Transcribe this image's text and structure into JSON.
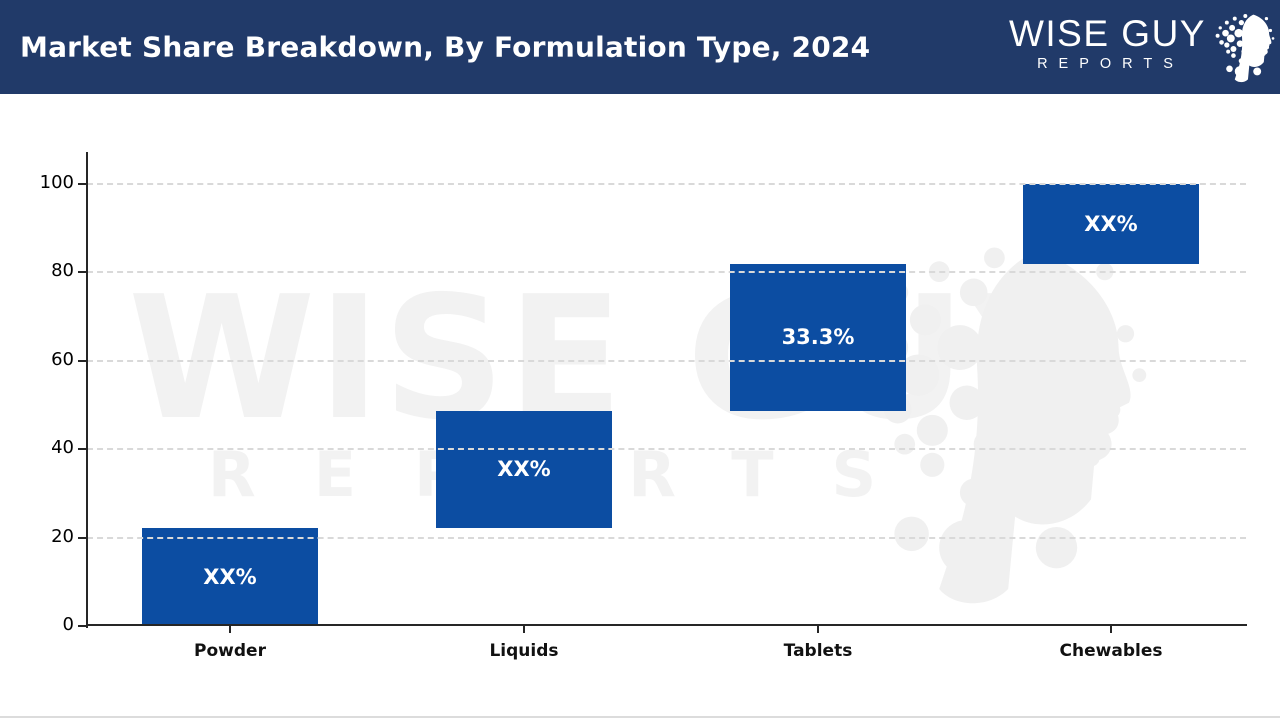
{
  "header": {
    "title": "Market Share Breakdown, By Formulation Type, 2024",
    "bg_color": "#213a69",
    "logo": {
      "line1": "WISE GUY",
      "line2": "REPORTS"
    }
  },
  "watermark": {
    "line1": "WISE GUY",
    "line2": "REPORTS"
  },
  "chart_data": {
    "type": "bar",
    "subtype": "floating-waterfall",
    "title": "Market Share Breakdown, By Formulation Type, 2024",
    "categories": [
      "Powder",
      "Liquids",
      "Tablets",
      "Chewables"
    ],
    "segments": [
      [
        0,
        22.2
      ],
      [
        22.2,
        48.7
      ],
      [
        48.7,
        82
      ],
      [
        82,
        100
      ]
    ],
    "bar_labels": [
      "XX%",
      "XX%",
      "33.3%",
      "XX%"
    ],
    "y_ticks": [
      0,
      20,
      40,
      60,
      80,
      100
    ],
    "ylim": [
      0,
      100
    ],
    "xlabel": "",
    "ylabel": "",
    "grid": "dashed horizontal gridlines",
    "legend": "none",
    "bar_color": "#0c4da2",
    "bar_label_color": "#ffffff",
    "axis_color": "#262626"
  }
}
